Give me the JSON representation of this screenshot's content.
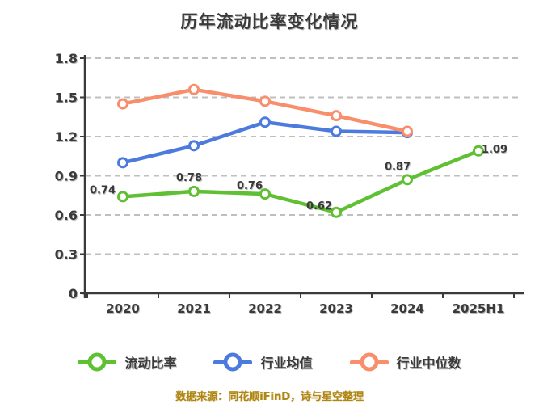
{
  "title": "历年流动比率变化情况",
  "footer": {
    "source_note": "数据来源：同花顺iFinD，诗与星空整理"
  },
  "colors": {
    "green": "#5ec032",
    "blue": "#4d7bdd",
    "orange": "#f88e6b",
    "text": "#3a3a3a",
    "grid": "#bfbfbf",
    "axis": "#3a3a3a",
    "footer_text": "#b08613",
    "background": "#ffffff"
  },
  "legend": {
    "items": [
      {
        "label": "流动比率",
        "color": "#5ec032"
      },
      {
        "label": "行业均值",
        "color": "#4d7bdd"
      },
      {
        "label": "行业中位数",
        "color": "#f88e6b"
      }
    ]
  },
  "chart_data": {
    "type": "line",
    "title": "历年流动比率变化情况",
    "categories": [
      "2020",
      "2021",
      "2022",
      "2023",
      "2024",
      "2025H1"
    ],
    "y_ticks": [
      0,
      0.3,
      0.6,
      0.9,
      1.2,
      1.5,
      1.8
    ],
    "y_tick_labels": [
      "0",
      "0.3",
      "0.6",
      "0.9",
      "1.2",
      "1.5",
      "1.8"
    ],
    "ylim": [
      0,
      1.8
    ],
    "grid": "dashed-horizontal",
    "legend_position": "bottom",
    "series": [
      {
        "name": "流动比率",
        "color": "#5ec032",
        "values": [
          0.74,
          0.78,
          0.76,
          0.62,
          0.87,
          1.09
        ],
        "labels": [
          "0.74",
          "0.78",
          "0.76",
          "0.62",
          "0.87",
          "1.09"
        ]
      },
      {
        "name": "行业均值",
        "color": "#4d7bdd",
        "values": [
          1.0,
          1.13,
          1.31,
          1.24,
          1.23
        ]
      },
      {
        "name": "行业中位数",
        "color": "#f88e6b",
        "values": [
          1.45,
          1.56,
          1.47,
          1.36,
          1.24
        ]
      }
    ]
  }
}
